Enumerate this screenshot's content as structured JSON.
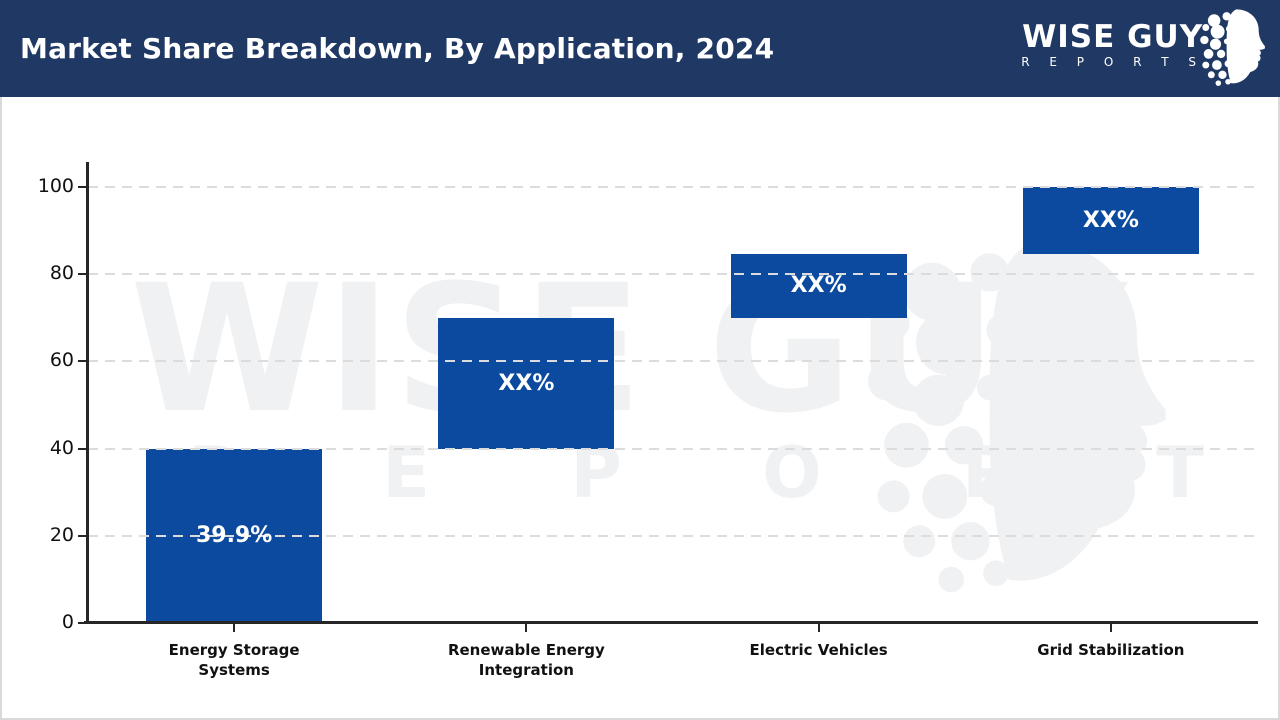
{
  "header": {
    "title": "Market Share Breakdown, By Application, 2024",
    "logo": {
      "line1": "WISE GUY",
      "line2": "R E P O R T S"
    },
    "bg_color": "#1f3864"
  },
  "watermark": {
    "line1": "WISE GUY",
    "line2": "R E P O R T S"
  },
  "chart_data": {
    "type": "bar",
    "subtype": "waterfall",
    "title": "Market Share Breakdown, By Application, 2024",
    "categories": [
      "Energy Storage\nSystems",
      "Renewable Energy\nIntegration",
      "Electric Vehicles",
      "Grid Stabilization"
    ],
    "series": [
      {
        "name": "Market Share",
        "segments": [
          {
            "category": "Energy Storage Systems",
            "start": 0,
            "end": 39.9,
            "label": "39.9%"
          },
          {
            "category": "Renewable Energy Integration",
            "start": 39.9,
            "end": 69.9,
            "label": "XX%"
          },
          {
            "category": "Electric Vehicles",
            "start": 69.9,
            "end": 84.6,
            "label": "XX%"
          },
          {
            "category": "Grid Stabilization",
            "start": 84.6,
            "end": 100,
            "label": "XX%"
          }
        ]
      }
    ],
    "values": [
      39.9,
      30.0,
      14.7,
      15.4
    ],
    "bar_color": "#0b4a9e",
    "label_color": "#ffffff",
    "axis_color": "#262626",
    "grid_color": "#dcdcdc",
    "ylim": [
      0,
      100
    ],
    "yticks": [
      "0",
      "20",
      "40",
      "60",
      "80",
      "100"
    ],
    "grid": "horizontal dashed, drawn above bars",
    "legend": "none"
  }
}
